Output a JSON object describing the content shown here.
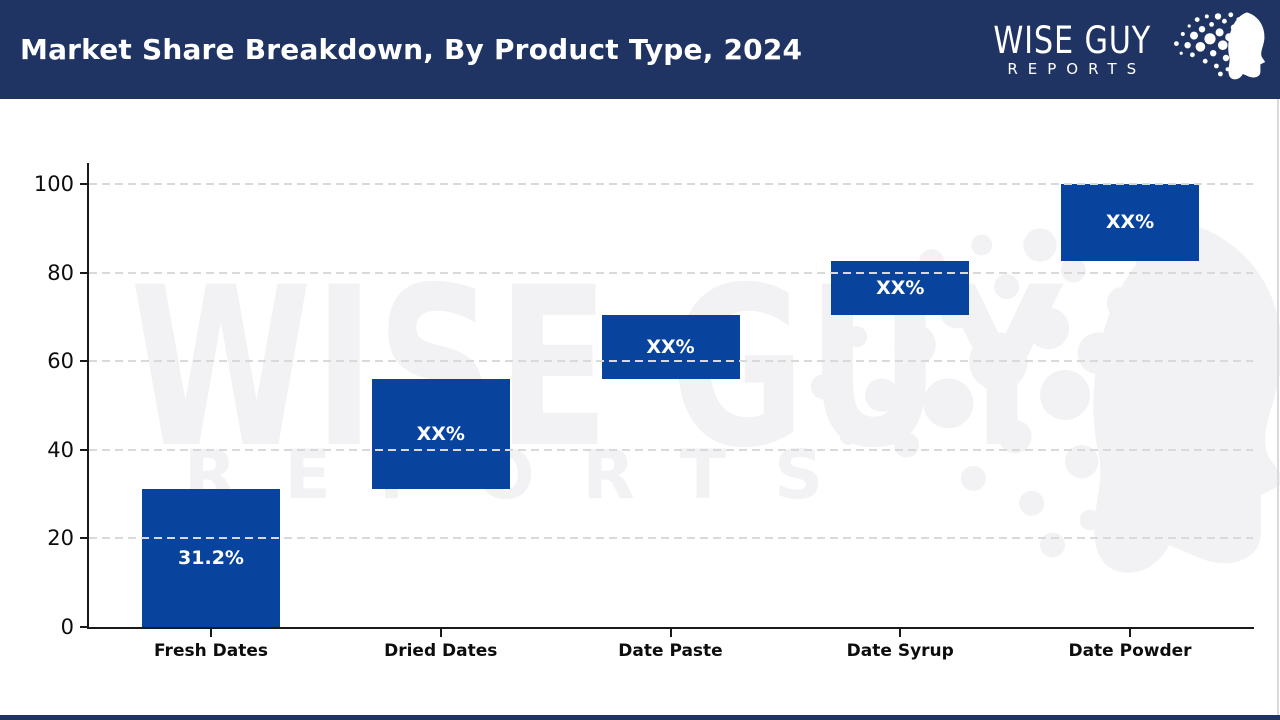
{
  "header": {
    "title": "Market Share Breakdown, By Product Type, 2024",
    "logo": {
      "line1": "WISE GUY",
      "line2": "REPORTS"
    }
  },
  "watermark": {
    "line1": "WISE GUY",
    "line2": "REPORTS"
  },
  "colors": {
    "header_bg": "#1F3463",
    "bar": "#08439D",
    "bar_label": "#FFFFFF",
    "gridline": "#D9D9D9",
    "axis": "#1A1A1A",
    "watermark": "#F2F2F4"
  },
  "chart_data": {
    "type": "bar",
    "subtype": "waterfall",
    "title": "Market Share Breakdown, By Product Type, 2024",
    "xlabel": "",
    "ylabel": "",
    "categories": [
      "Fresh Dates",
      "Dried Dates",
      "Date Paste",
      "Date Syrup",
      "Date Powder"
    ],
    "segments": [
      {
        "category": "Fresh Dates",
        "start": 0,
        "end": 31.2,
        "label": "31.2%"
      },
      {
        "category": "Dried Dates",
        "start": 31.2,
        "end": 56.0,
        "label": "XX%"
      },
      {
        "category": "Date Paste",
        "start": 56.0,
        "end": 70.4,
        "label": "XX%"
      },
      {
        "category": "Date Syrup",
        "start": 70.4,
        "end": 82.7,
        "label": "XX%"
      },
      {
        "category": "Date Powder",
        "start": 82.7,
        "end": 100,
        "label": "XX%"
      }
    ],
    "y_ticks": [
      0,
      20,
      40,
      60,
      80,
      100
    ],
    "ylim": [
      0,
      104.5
    ],
    "grid": "horizontal-dashed",
    "legend": "none"
  }
}
